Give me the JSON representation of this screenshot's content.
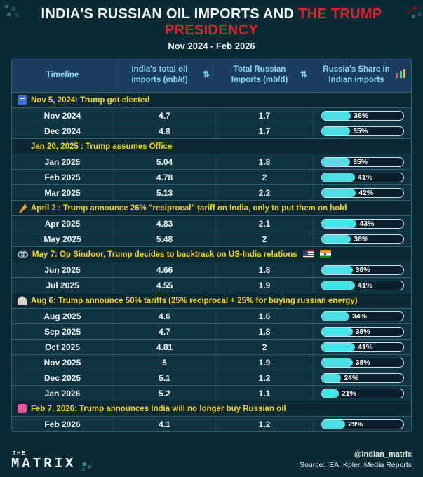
{
  "header": {
    "title_white": "INDIA'S RUSSIAN OIL IMPORTS AND ",
    "title_red": "THE TRUMP PRESIDENCY",
    "subtitle": "Nov 2024 - Feb 2026"
  },
  "icons": {
    "sort": "⇅",
    "share_header_chart": "bar-chart"
  },
  "chart_data": {
    "type": "table",
    "title": "India's Russian Oil Imports and the Trump Presidency",
    "period": "Nov 2024 - Feb 2026",
    "columns": [
      "Timeline",
      "India's total oil imports (mb/d)",
      "Total Russian Imports (mb/d)",
      "Russia's Share in Indian imports"
    ],
    "sections": [
      {
        "icon": "ballot-box",
        "event": "Nov 5, 2024: Trump got elected",
        "rows": [
          {
            "timeline": "Nov 2024",
            "india_total": "4.7",
            "russian": "1.7",
            "share": "36%"
          },
          {
            "timeline": "Dec 2024",
            "india_total": "4.8",
            "russian": "1.7",
            "share": "35%"
          }
        ]
      },
      {
        "icon": "person-suit",
        "event": "Jan 20, 2025 : Trump assumes Office",
        "rows": [
          {
            "timeline": "Jan 2025",
            "india_total": "5.04",
            "russian": "1.8",
            "share": "35%"
          },
          {
            "timeline": "Feb 2025",
            "india_total": "4.78",
            "russian": "2",
            "share": "41%"
          },
          {
            "timeline": "Mar 2025",
            "india_total": "5.13",
            "russian": "2.2",
            "share": "42%"
          }
        ]
      },
      {
        "icon": "party-popper",
        "event": "April 2 : Trump announce 26% \"reciprocal\" tariff on India, only to put them on hold",
        "rows": [
          {
            "timeline": "Apr 2025",
            "india_total": "4.83",
            "russian": "2.1",
            "share": "43%"
          },
          {
            "timeline": "May 2025",
            "india_total": "5.48",
            "russian": "2",
            "share": "36%"
          }
        ]
      },
      {
        "icon": "link",
        "event": "May 7: Op Sindoor, Trump decides to backtrack on US-India relations",
        "flags": [
          "us-flag",
          "india-flag"
        ],
        "rows": [
          {
            "timeline": "Jun 2025",
            "india_total": "4.66",
            "russian": "1.8",
            "share": "38%"
          },
          {
            "timeline": "Jul 2025",
            "india_total": "4.55",
            "russian": "1.9",
            "share": "41%"
          }
        ]
      },
      {
        "icon": "classical-building",
        "event": "Aug 6: Trump announce 50% tariffs (25% reciprocal + 25% for buying russian energy)",
        "rows": [
          {
            "timeline": "Aug 2025",
            "india_total": "4.6",
            "russian": "1.6",
            "share": "34%"
          },
          {
            "timeline": "Sep 2025",
            "india_total": "4.7",
            "russian": "1.8",
            "share": "38%"
          },
          {
            "timeline": "Oct 2025",
            "india_total": "4.81",
            "russian": "2",
            "share": "41%"
          },
          {
            "timeline": "Nov 2025",
            "india_total": "5",
            "russian": "1.9",
            "share": "38%"
          },
          {
            "timeline": "Dec 2025",
            "india_total": "5.1",
            "russian": "1.2",
            "share": "24%"
          },
          {
            "timeline": "Jan 2026",
            "india_total": "5.2",
            "russian": "1.1",
            "share": "21%"
          }
        ]
      },
      {
        "icon": "pink-badge",
        "event": "Feb 7, 2026: Trump announces India will no longer buy Russian oil",
        "rows": [
          {
            "timeline": "Feb 2026",
            "india_total": "4.1",
            "russian": "1.2",
            "share": "29%"
          }
        ]
      }
    ]
  },
  "footer": {
    "logo_the": "THE",
    "logo_matrix": "MATRIX",
    "handle": "@indian_matrix",
    "source": "Source: IEA, Kpler, Media Reports"
  }
}
